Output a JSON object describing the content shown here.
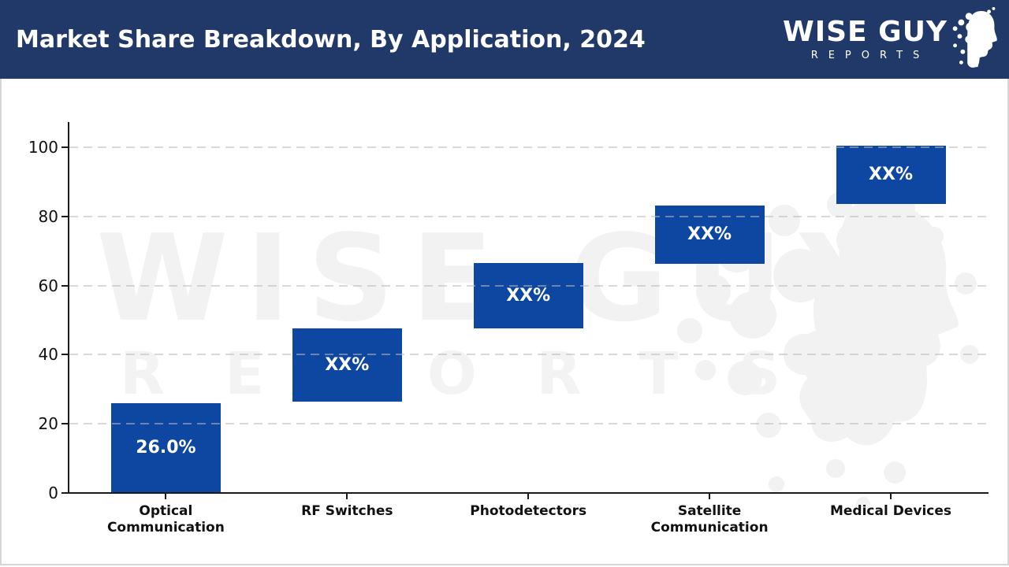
{
  "header": {
    "title": "Market Share Breakdown, By Application, 2024",
    "logo": {
      "wordmark": "WISE GUY",
      "subtext": "REPORTS"
    }
  },
  "watermark": {
    "wordmark": "WISE GUY",
    "subtext": "REPORTS"
  },
  "colors": {
    "header_bg": "#213968",
    "bar": "#0d47a1",
    "bar_label": "#ffffff",
    "axis": "#1a1a1a",
    "grid": "#bcbcbc",
    "watermark": "#f2f2f2"
  },
  "chart_data": {
    "type": "bar",
    "subtype": "waterfall",
    "title": "Market Share Breakdown, By Application, 2024",
    "xlabel": "",
    "ylabel": "",
    "ylim": [
      0,
      107
    ],
    "yticks": [
      0,
      20,
      40,
      60,
      80,
      100
    ],
    "grid": "horizontal-dashed",
    "legend": "none",
    "categories": [
      "Optical\nCommunication",
      "RF Switches",
      "Photodetectors",
      "Satellite\nCommunication",
      "Medical Devices"
    ],
    "segments": [
      {
        "category": "Optical Communication",
        "start": 0,
        "end": 26.0,
        "label": "26.0%"
      },
      {
        "category": "RF Switches",
        "start": 26.4,
        "end": 47.6,
        "label": "XX%"
      },
      {
        "category": "Photodetectors",
        "start": 47.7,
        "end": 66.5,
        "label": "XX%"
      },
      {
        "category": "Satellite Communication",
        "start": 66.4,
        "end": 83.2,
        "label": "XX%"
      },
      {
        "category": "Medical Devices",
        "start": 83.7,
        "end": 100.4,
        "label": "XX%"
      }
    ]
  }
}
